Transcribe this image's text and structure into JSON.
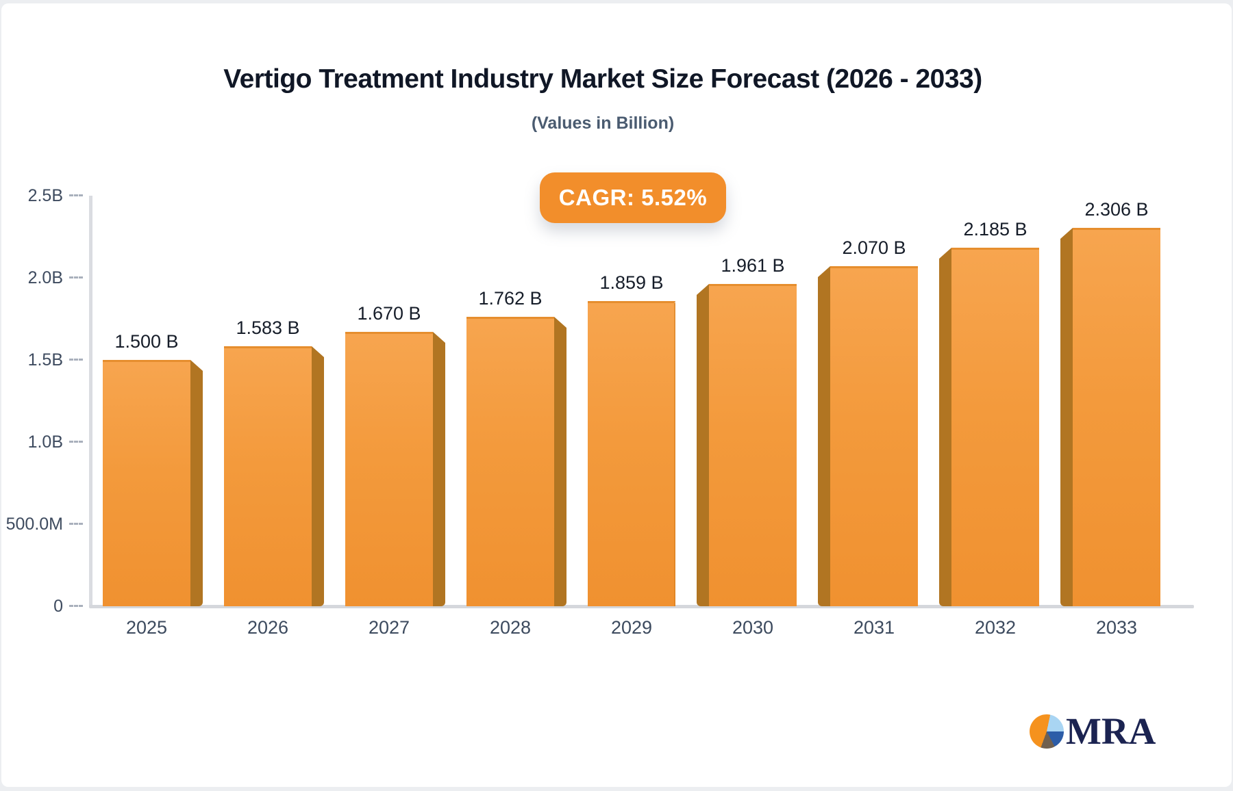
{
  "title": "Vertigo Treatment Industry Market Size Forecast (2026 - 2033)",
  "subtitle": "(Values in Billion)",
  "badge": {
    "label": "CAGR: 5.52%",
    "bg": "#F28E2B"
  },
  "logo": {
    "text": "MRA"
  },
  "chart_data": {
    "type": "bar",
    "title": "Vertigo Treatment Industry Market Size Forecast (2026 - 2033)",
    "subtitle": "(Values in Billion)",
    "annotation": "CAGR: 5.52%",
    "categories": [
      "2025",
      "2026",
      "2027",
      "2028",
      "2029",
      "2030",
      "2031",
      "2032",
      "2033"
    ],
    "values": [
      1.5,
      1.583,
      1.67,
      1.762,
      1.859,
      1.961,
      2.07,
      2.185,
      2.306
    ],
    "value_labels": [
      "1.500 B",
      "1.583 B",
      "1.670 B",
      "1.762 B",
      "1.859 B",
      "1.961 B",
      "2.070 B",
      "2.185 B",
      "2.306 B"
    ],
    "xlabel": "",
    "ylabel": "",
    "ylim": [
      0,
      2.5
    ],
    "y_ticks": [
      {
        "label": "2.5B",
        "value": 2.5
      },
      {
        "label": "2.0B",
        "value": 2.0
      },
      {
        "label": "1.5B",
        "value": 1.5
      },
      {
        "label": "1.0B",
        "value": 1.0
      },
      {
        "label": "500.0M",
        "value": 0.5
      },
      {
        "label": "0",
        "value": 0
      }
    ],
    "grid": false,
    "legend": false,
    "colors": {
      "bar_face_top": "#F7A54F",
      "bar_face_bottom": "#F09130",
      "bar_side": "#B17522",
      "bar_top_edge": "#E68E2E",
      "axis_line": "#DADCE1",
      "axis_text": "#3E4B5F",
      "value_text": "#161D29",
      "badge_bg": "#F28E2B",
      "badge_text": "#FFFFFF"
    }
  }
}
